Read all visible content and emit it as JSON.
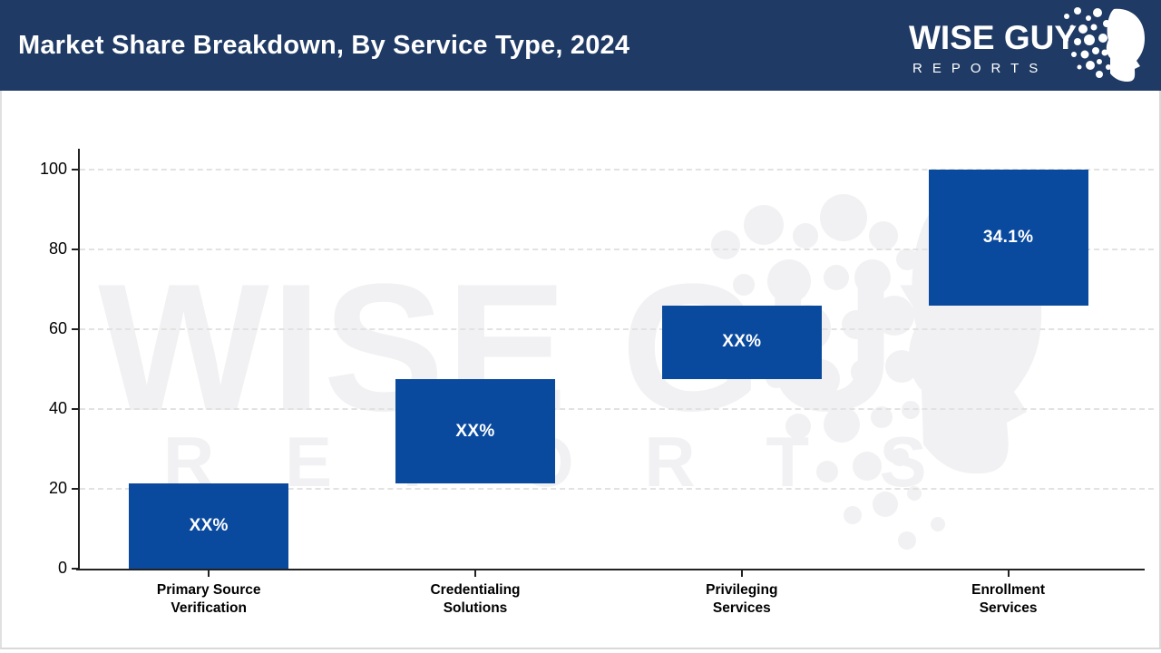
{
  "header": {
    "title": "Market Share Breakdown, By Service Type, 2024",
    "logo": {
      "primary": "WISE GUY",
      "secondary": "REPORTS"
    }
  },
  "watermark": {
    "primary": "WISE GUY",
    "secondary": "R E P O R T S"
  },
  "colors": {
    "header_bg": "#1f3a64",
    "bar": "#0a4a9e",
    "bar_label": "#ffffff",
    "grid": "#e2e2e2",
    "axis": "#222222",
    "watermark": "#f1f1f3",
    "frame_border": "#d9d9d9"
  },
  "chart_data": {
    "type": "bar",
    "subtype": "waterfall",
    "title": "Market Share Breakdown, By Service Type, 2024",
    "xlabel": "",
    "ylabel": "",
    "ylim": [
      0,
      100
    ],
    "yticks": [
      0,
      20,
      40,
      60,
      80,
      100
    ],
    "grid": "horizontal-dashed",
    "legend": "none",
    "categories": [
      [
        "Primary Source",
        "Verification"
      ],
      [
        "Credentialing",
        "Solutions"
      ],
      [
        "Privileging",
        "Services"
      ],
      [
        "Enrollment",
        "Services"
      ]
    ],
    "segments": [
      {
        "category": "Primary Source Verification",
        "start": 0,
        "end": 21.3,
        "value_label": "XX%"
      },
      {
        "category": "Credentialing Solutions",
        "start": 21.3,
        "end": 47.6,
        "value_label": "XX%"
      },
      {
        "category": "Privileging Services",
        "start": 47.6,
        "end": 65.9,
        "value_label": "XX%"
      },
      {
        "category": "Enrollment Services",
        "start": 65.9,
        "end": 100,
        "value_label": "34.1%"
      }
    ]
  }
}
